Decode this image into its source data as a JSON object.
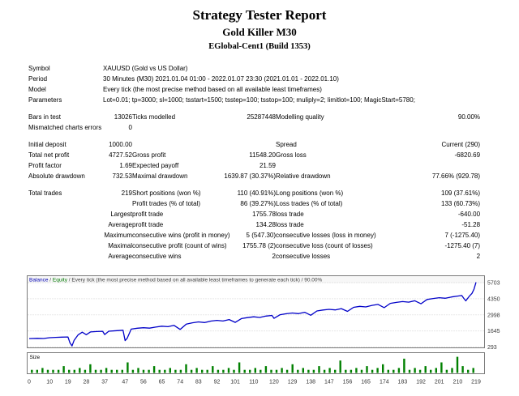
{
  "report": {
    "title": "Strategy Tester Report",
    "expert": "Gold Killer M30",
    "server": "EGlobal-Cent1 (Build 1353)"
  },
  "stats": {
    "rows": [
      {
        "wide": true,
        "label": "Symbol",
        "text": "XAUUSD (Gold vs US Dollar)"
      },
      {
        "wide": true,
        "label": "Period",
        "text": "30 Minutes (M30) 2021.01.04 01:00 - 2022.01.07 23:30 (2021.01.01 - 2022.01.10)"
      },
      {
        "wide": true,
        "label": "Model",
        "text": "Every tick (the most precise method based on all available least timeframes)"
      },
      {
        "wide": true,
        "label": "Parameters",
        "text": "Lot=0.01; tp=3000; sl=1000; tsstart=1500; tsstep=100; tsstop=100; muliply=2; limitlot=100; MagicStart=5780;"
      },
      {
        "spacer": true
      },
      {
        "g1": {
          "l": "Bars in test",
          "v": "13026"
        },
        "g2": {
          "l": "Ticks modelled",
          "v": "25287448"
        },
        "g3": {
          "l": "Modelling quality",
          "v": "90.00%"
        }
      },
      {
        "g1": {
          "l": "Mismatched charts errors",
          "v": "0"
        },
        "g2": {
          "l": "",
          "v": ""
        },
        "g3": {
          "l": "",
          "v": ""
        }
      },
      {
        "spacer": true
      },
      {
        "g1": {
          "l": "Initial deposit",
          "v": "1000.00"
        },
        "g2": {
          "l": "",
          "v": ""
        },
        "g3": {
          "l": "Spread",
          "v": "Current (290)"
        }
      },
      {
        "g1": {
          "l": "Total net profit",
          "v": "4727.52"
        },
        "g2": {
          "l": "Gross profit",
          "v": "11548.20"
        },
        "g3": {
          "l": "Gross loss",
          "v": "-6820.69"
        }
      },
      {
        "g1": {
          "l": "Profit factor",
          "v": "1.69"
        },
        "g2": {
          "l": "Expected payoff",
          "v": "21.59"
        },
        "g3": {
          "l": "",
          "v": ""
        }
      },
      {
        "g1": {
          "l": "Absolute drawdown",
          "v": "732.53"
        },
        "g2": {
          "l": "Maximal drawdown",
          "v": "1639.87 (30.37%)"
        },
        "g3": {
          "l": "Relative drawdown",
          "v": "77.66% (929.78)"
        }
      },
      {
        "spacer": true
      },
      {
        "g1": {
          "l": "Total trades",
          "v": "219"
        },
        "g2": {
          "l": "Short positions (won %)",
          "v": "110 (40.91%)"
        },
        "g3": {
          "l": "Long positions (won %)",
          "v": "109 (37.61%)"
        }
      },
      {
        "g1": {
          "l": "",
          "v": ""
        },
        "g2": {
          "l": "Profit trades (% of total)",
          "v": "86 (39.27%)"
        },
        "g3": {
          "l": "Loss trades (% of total)",
          "v": "133 (60.73%)"
        }
      },
      {
        "g1": {
          "l": "",
          "v": "Largest"
        },
        "g2": {
          "l": "profit trade",
          "v": "1755.78"
        },
        "g3": {
          "l": "loss trade",
          "v": "-640.00"
        }
      },
      {
        "g1": {
          "l": "",
          "v": "Average"
        },
        "g2": {
          "l": "profit trade",
          "v": "134.28"
        },
        "g3": {
          "l": "loss trade",
          "v": "-51.28"
        }
      },
      {
        "g1": {
          "l": "",
          "v": "Maximum"
        },
        "g2": {
          "l": "consecutive wins (profit in money)",
          "v": "5 (547.30)"
        },
        "g3": {
          "l": "consecutive losses (loss in money)",
          "v": "7 (-1275.40)"
        }
      },
      {
        "g1": {
          "l": "",
          "v": "Maximal"
        },
        "g2": {
          "l": "consecutive profit (count of wins)",
          "v": "1755.78 (2)"
        },
        "g3": {
          "l": "consecutive loss (count of losses)",
          "v": "-1275.40 (7)"
        }
      },
      {
        "g1": {
          "l": "",
          "v": "Average"
        },
        "g2": {
          "l": "consecutive wins",
          "v": "2"
        },
        "g3": {
          "l": "consecutive losses",
          "v": "2"
        }
      }
    ]
  },
  "chart_data": {
    "type": "line",
    "title": "Balance / Equity / Every tick (the most precise method based on all available least timeframes to generate each tick) / 90.00%",
    "header_parts": [
      {
        "text": "Balance",
        "color": "#0000B4"
      },
      {
        "text": " / ",
        "color": "#3c3c3c"
      },
      {
        "text": "Equity",
        "color": "#007800"
      },
      {
        "text": " / Every tick (the most precise method based on all available least timeframes to generate each tick) / 90.00%",
        "color": "#3c3c3c"
      }
    ],
    "y_ticks": [
      5703,
      4350,
      2998,
      1645,
      293
    ],
    "x_ticks": [
      0,
      10,
      19,
      28,
      37,
      47,
      56,
      65,
      74,
      83,
      92,
      101,
      110,
      120,
      129,
      138,
      147,
      156,
      165,
      174,
      183,
      192,
      201,
      210,
      219
    ],
    "ylim": [
      293,
      5703
    ],
    "xlim": [
      0,
      219
    ],
    "line_color": "#0000C8",
    "bar_color": "#008000",
    "grid_color": "#d0d0d0",
    "border_color": "#7a7a7a",
    "size_label": "Size",
    "balance_series": [
      [
        0,
        1000
      ],
      [
        4,
        1020
      ],
      [
        7,
        1005
      ],
      [
        10,
        1075
      ],
      [
        13,
        1100
      ],
      [
        16,
        1120
      ],
      [
        19,
        1135
      ],
      [
        20,
        640
      ],
      [
        21,
        380
      ],
      [
        22,
        860
      ],
      [
        24,
        1320
      ],
      [
        26,
        1540
      ],
      [
        28,
        1330
      ],
      [
        30,
        1560
      ],
      [
        33,
        1590
      ],
      [
        36,
        1610
      ],
      [
        37,
        1340
      ],
      [
        39,
        1620
      ],
      [
        43,
        1670
      ],
      [
        46,
        1700
      ],
      [
        47,
        830
      ],
      [
        48,
        1020
      ],
      [
        50,
        1800
      ],
      [
        53,
        1870
      ],
      [
        56,
        1910
      ],
      [
        59,
        1880
      ],
      [
        62,
        1970
      ],
      [
        65,
        2040
      ],
      [
        68,
        2000
      ],
      [
        71,
        2110
      ],
      [
        74,
        1770
      ],
      [
        77,
        2220
      ],
      [
        80,
        2330
      ],
      [
        83,
        2400
      ],
      [
        86,
        2350
      ],
      [
        89,
        2470
      ],
      [
        92,
        2530
      ],
      [
        95,
        2480
      ],
      [
        98,
        2600
      ],
      [
        101,
        2360
      ],
      [
        104,
        2680
      ],
      [
        107,
        2760
      ],
      [
        110,
        2830
      ],
      [
        113,
        2780
      ],
      [
        116,
        2890
      ],
      [
        119,
        2950
      ],
      [
        120,
        2700
      ],
      [
        123,
        3010
      ],
      [
        126,
        3090
      ],
      [
        129,
        3150
      ],
      [
        132,
        3100
      ],
      [
        135,
        3210
      ],
      [
        138,
        2960
      ],
      [
        141,
        3320
      ],
      [
        144,
        3400
      ],
      [
        147,
        3460
      ],
      [
        150,
        3410
      ],
      [
        153,
        3520
      ],
      [
        156,
        3290
      ],
      [
        159,
        3630
      ],
      [
        162,
        3710
      ],
      [
        165,
        3660
      ],
      [
        168,
        3790
      ],
      [
        171,
        3870
      ],
      [
        174,
        3600
      ],
      [
        177,
        3960
      ],
      [
        180,
        4040
      ],
      [
        183,
        4110
      ],
      [
        186,
        4060
      ],
      [
        189,
        4180
      ],
      [
        192,
        3930
      ],
      [
        195,
        4290
      ],
      [
        198,
        4370
      ],
      [
        201,
        4440
      ],
      [
        204,
        4390
      ],
      [
        207,
        4500
      ],
      [
        210,
        4570
      ],
      [
        212,
        4620
      ],
      [
        213,
        4380
      ],
      [
        214,
        4170
      ],
      [
        215,
        4400
      ],
      [
        216,
        4620
      ],
      [
        217,
        4800
      ],
      [
        218,
        5150
      ],
      [
        219,
        5727.52
      ]
    ],
    "size_series": [
      1,
      1,
      2,
      1,
      1,
      1,
      3,
      1,
      1,
      2,
      1,
      4,
      1,
      1,
      2,
      1,
      1,
      1,
      5,
      1,
      2,
      1,
      1,
      3,
      1,
      1,
      2,
      1,
      1,
      4,
      1,
      2,
      1,
      1,
      3,
      1,
      1,
      2,
      1,
      5,
      1,
      1,
      2,
      1,
      3,
      1,
      1,
      2,
      1,
      4,
      1,
      2,
      1,
      1,
      3,
      1,
      2,
      1,
      6,
      1,
      1,
      2,
      1,
      3,
      1,
      2,
      4,
      1,
      1,
      2,
      7,
      1,
      2,
      1,
      3,
      1,
      2,
      5,
      1,
      2,
      8,
      3,
      1,
      2
    ]
  }
}
